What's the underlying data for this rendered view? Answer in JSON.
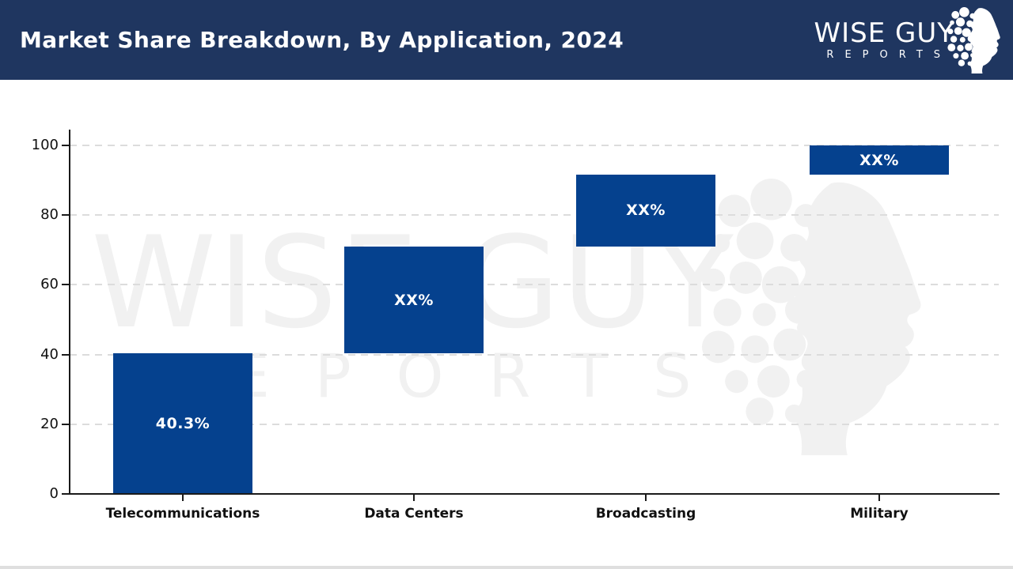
{
  "header": {
    "title": "Market Share Breakdown, By Application, 2024",
    "logo": {
      "line1": "WISE GUY",
      "line2": "REPORTS"
    }
  },
  "watermark": {
    "line1": "WISE GUY",
    "line2": "REPORTS"
  },
  "chart_data": {
    "type": "bar",
    "subtype": "waterfall",
    "title": "Market Share Breakdown, By Application, 2024",
    "categories": [
      "Telecommunications",
      "Data Centers",
      "Broadcasting",
      "Military"
    ],
    "segments": [
      {
        "category": "Telecommunications",
        "start": 0,
        "end": 40.3,
        "value": 40.3,
        "label": "40.3%"
      },
      {
        "category": "Data Centers",
        "start": 40.3,
        "end": 71.0,
        "value": 30.7,
        "label": "XX%"
      },
      {
        "category": "Broadcasting",
        "start": 71.0,
        "end": 91.6,
        "value": 20.6,
        "label": "XX%"
      },
      {
        "category": "Military",
        "start": 91.6,
        "end": 100.0,
        "value": 8.4,
        "label": "XX%"
      }
    ],
    "xlabel": "",
    "ylabel": "",
    "ylim": [
      0,
      105
    ],
    "yticks": [
      0,
      20,
      40,
      60,
      80,
      100
    ],
    "grid": "horizontal-dashed",
    "legend": "none",
    "bar_color": "#05418e",
    "bar_label_color": "#ffffff"
  },
  "colors": {
    "header_bg": "#1f3660",
    "bar": "#05418e",
    "grid": "#dcdcdc",
    "axis": "#1a1a1a",
    "watermark": "#f1f1f1",
    "bottom_strip": "#dfdfdf"
  }
}
